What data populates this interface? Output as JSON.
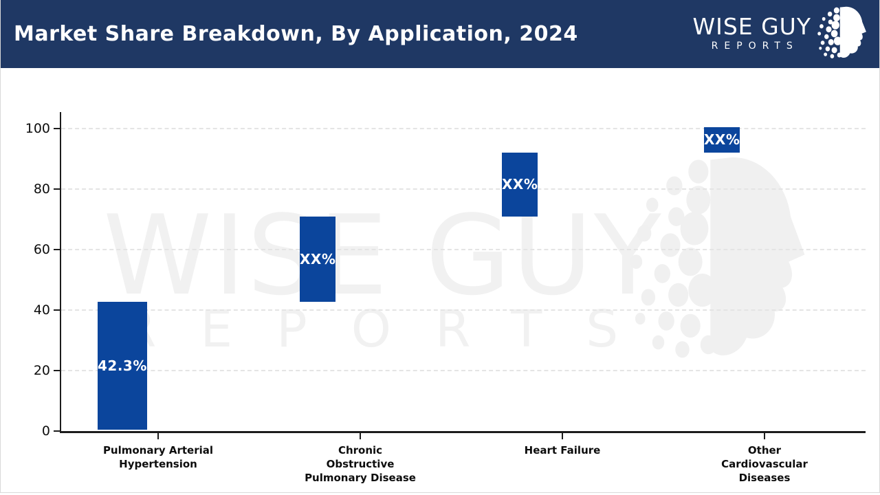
{
  "header": {
    "title": "Market Share Breakdown, By Application, 2024",
    "logo": {
      "line1": "WISE GUY",
      "line2": "REPORTS"
    }
  },
  "watermark": {
    "line1": "WISE GUY",
    "line2": "REPORTS"
  },
  "chart_data": {
    "type": "bar",
    "subtype": "waterfall",
    "title": "Market Share Breakdown, By Application, 2024",
    "categories": [
      "Pulmonary Arterial\nHypertension",
      "Chronic\nObstructive\nPulmonary Disease",
      "Heart Failure",
      "Other\nCardiovascular\nDiseases"
    ],
    "bars": [
      {
        "category": "Pulmonary Arterial Hypertension",
        "start": 0,
        "end": 42.3,
        "label": "42.3%"
      },
      {
        "category": "Chronic Obstructive Pulmonary Disease",
        "start": 42.3,
        "end": 70.5,
        "label": "XX%"
      },
      {
        "category": "Heart Failure",
        "start": 70.5,
        "end": 91.7,
        "label": "XX%"
      },
      {
        "category": "Other Cardiovascular Diseases",
        "start": 91.7,
        "end": 100,
        "label": "XX%"
      }
    ],
    "yticks": [
      0,
      20,
      40,
      60,
      80,
      100
    ],
    "ylim": [
      0,
      105.5
    ],
    "xlabel": "",
    "ylabel": "",
    "grid": "horizontal-dashed",
    "legend": "none",
    "bar_color": "#0b459c",
    "value_label_color": "#ffffff",
    "header_color": "#1f3864"
  }
}
